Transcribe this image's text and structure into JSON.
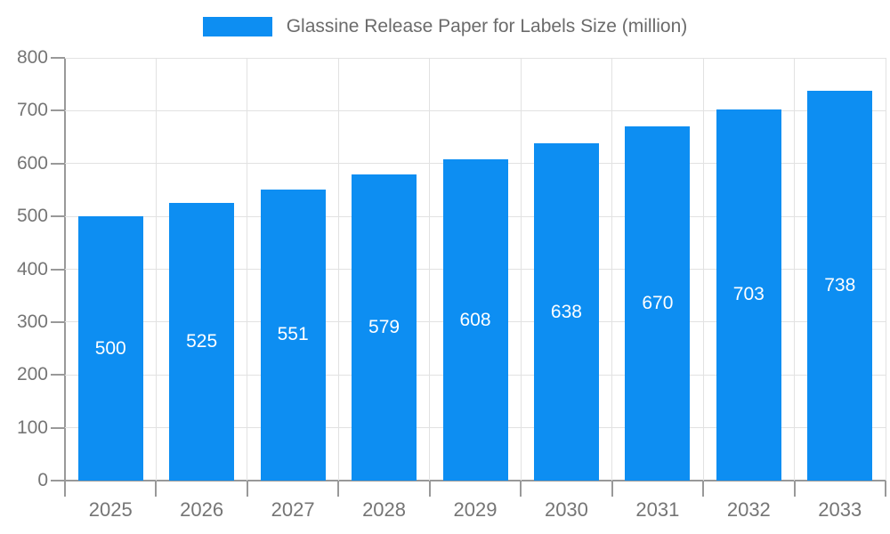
{
  "legend": {
    "label": "Glassine Release Paper for Labels Size (million)"
  },
  "colors": {
    "bar": "#0d8ef2",
    "axis": "#999999",
    "grid": "#e2e2e2",
    "tick_label": "#757575",
    "legend_text": "#6b6b6b",
    "bar_label": "#ffffff"
  },
  "chart_data": {
    "type": "bar",
    "title": "Glassine Release Paper for Labels Size (million)",
    "categories": [
      "2025",
      "2026",
      "2027",
      "2028",
      "2029",
      "2030",
      "2031",
      "2032",
      "2033"
    ],
    "values": [
      500,
      525,
      551,
      579,
      608,
      638,
      670,
      703,
      738
    ],
    "xlabel": "",
    "ylabel": "",
    "ylim": [
      0,
      800
    ],
    "yticks": [
      0,
      100,
      200,
      300,
      400,
      500,
      600,
      700,
      800
    ],
    "grid": true,
    "legend_position": "top",
    "bar_labels_inside": true
  }
}
